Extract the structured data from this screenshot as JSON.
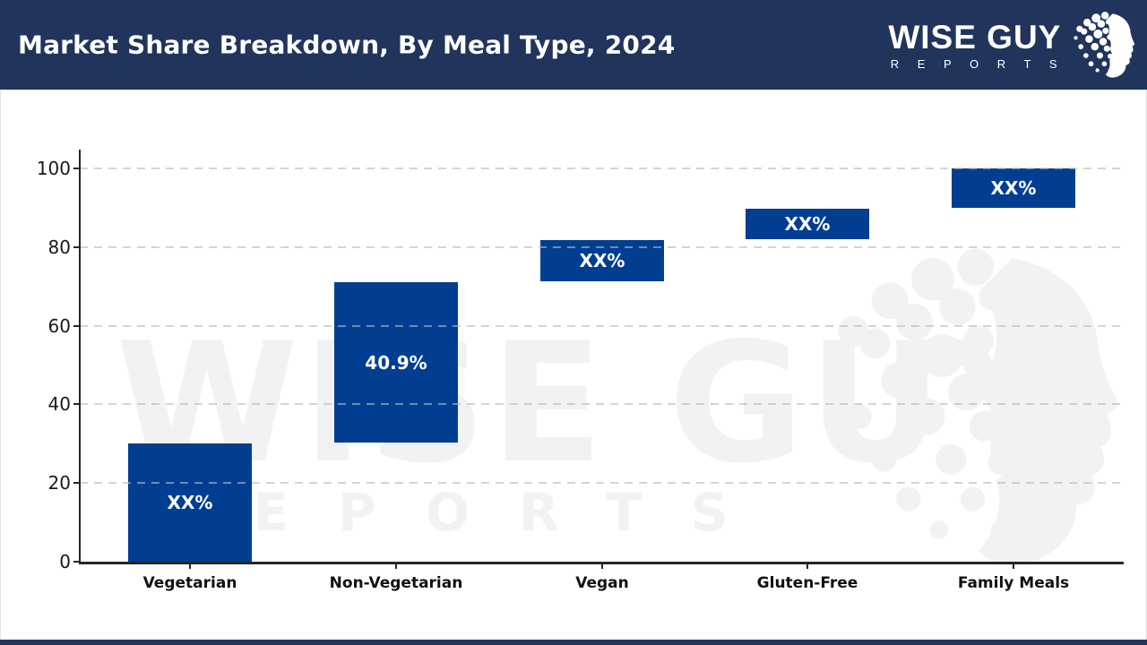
{
  "header": {
    "title": "Market Share Breakdown, By Meal Type, 2024",
    "logo": {
      "line1": "WISE GUY",
      "line2": "R E P O R T S"
    }
  },
  "watermark": {
    "line1": "WISE GUY",
    "line2": "REPORTS"
  },
  "chart_data": {
    "type": "bar",
    "subtype": "waterfall-stacked-breakdown",
    "title": "Market Share Breakdown, By Meal Type, 2024",
    "categories": [
      "Vegetarian",
      "Non-Vegetarian",
      "Vegan",
      "Gluten-Free",
      "Family Meals"
    ],
    "segments": [
      {
        "label": "Vegetarian",
        "start": 0,
        "end": 30.0,
        "display": "XX%"
      },
      {
        "label": "Non-Vegetarian",
        "start": 30.2,
        "end": 71.1,
        "display": "40.9%"
      },
      {
        "label": "Vegan",
        "start": 71.3,
        "end": 81.8,
        "display": "XX%"
      },
      {
        "label": "Gluten-Free",
        "start": 82.0,
        "end": 89.7,
        "display": "XX%"
      },
      {
        "label": "Family Meals",
        "start": 90.0,
        "end": 99.9,
        "display": "XX%"
      }
    ],
    "xlabel": "",
    "ylabel": "",
    "y_ticks": [
      0,
      20,
      40,
      60,
      80,
      100
    ],
    "ylim": [
      0,
      105
    ],
    "grid": "horizontal-dashed",
    "legend": "none",
    "bar_color": "#013e92",
    "bar_label_color": "#ffffff"
  },
  "colors": {
    "header_bg": "#21345c",
    "footer_bg": "#21345c",
    "bar": "#013e92",
    "grid": "#d8d8d8",
    "axis": "#262626",
    "watermark": "#f2f2f4",
    "title_text": "#ffffff"
  }
}
